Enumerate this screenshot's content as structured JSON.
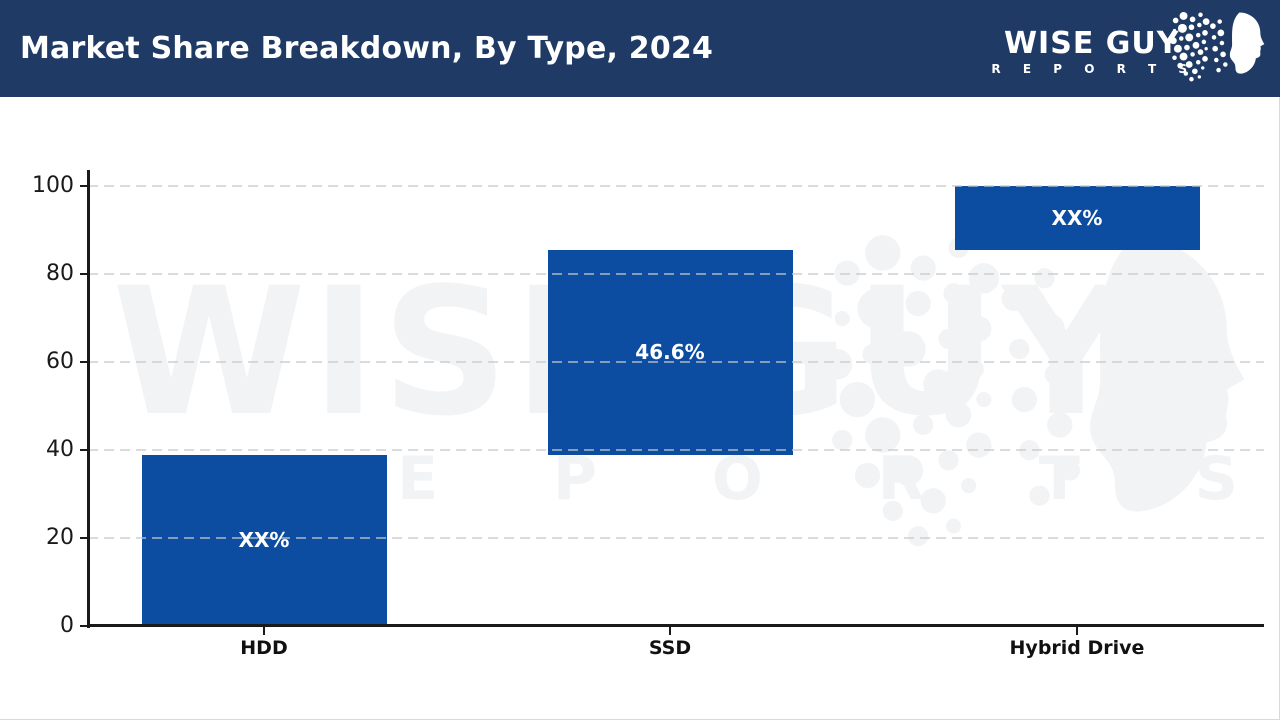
{
  "header": {
    "title": "Market Share Breakdown, By Type, 2024",
    "logo": {
      "line1": "WISE GUY",
      "line2": "R E P O R T S",
      "face_icon": "dotted-head-profile-icon"
    }
  },
  "watermark": {
    "line1": "WISE GUY",
    "line2": "R E P O R T S",
    "face_icon": "dotted-head-profile-watermark"
  },
  "chart_data": {
    "type": "bar",
    "variant": "floating-waterfall",
    "title": "Market Share Breakdown, By Type, 2024",
    "categories": [
      "HDD",
      "SSD",
      "Hybrid Drive"
    ],
    "series": [
      {
        "name": "Market Share %",
        "bars": [
          {
            "category": "HDD",
            "base": 0,
            "top": 38.9,
            "label": "XX%"
          },
          {
            "category": "SSD",
            "base": 38.9,
            "top": 85.5,
            "label": "46.6%"
          },
          {
            "category": "Hybrid Drive",
            "base": 85.5,
            "top": 100,
            "label": "XX%"
          }
        ]
      }
    ],
    "ylim": [
      0,
      100
    ],
    "yticks": [
      0,
      20,
      40,
      60,
      80,
      100
    ],
    "xlabel": "",
    "ylabel": "",
    "grid": "horizontal-dashed",
    "legend": "none"
  },
  "colors": {
    "header_bg": "#1f3a64",
    "bar": "#0c4da2",
    "bar_label": "#ffffff",
    "axis": "#1a1a1a",
    "watermark": "#f2f3f5",
    "page_border": "#d9d9d9"
  }
}
